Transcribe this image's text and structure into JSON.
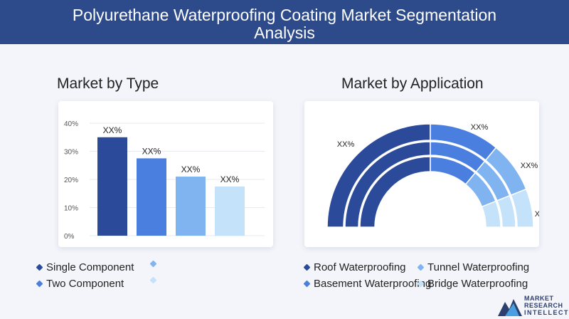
{
  "header": {
    "title": "Polyurethane Waterproofing Coating Market Segmentation Analysis"
  },
  "colors": {
    "header_bg": "#2d4a8a",
    "dark_blue": "#2b4a9a",
    "mid_blue": "#4a7fe0",
    "light_blue": "#7fb4f0",
    "pale_blue": "#c4e2fa"
  },
  "chart_data": [
    {
      "type": "bar",
      "title": "Market by Type",
      "categories": [
        "Single Component",
        "Two Component",
        "",
        ""
      ],
      "values": [
        35,
        27.5,
        21,
        17.5
      ],
      "data_labels": [
        "XX%",
        "XX%",
        "XX%",
        "XX%"
      ],
      "colors": [
        "#2b4a9a",
        "#4a7fe0",
        "#7fb4f0",
        "#c4e2fa"
      ],
      "yticks": [
        "0%",
        "10%",
        "20%",
        "30%",
        "40%"
      ],
      "ylim": [
        0,
        40
      ],
      "grid": true,
      "legend": [
        "Single Component",
        "",
        "Two Component",
        ""
      ]
    },
    {
      "type": "pie",
      "title": "Market by Application",
      "categories": [
        "Roof Waterproofing",
        "Tunnel Waterproofing",
        "Basement Waterproofing",
        "Bridge Waterproofing"
      ],
      "values": [
        50,
        22,
        16,
        12
      ],
      "data_labels": [
        "XX%",
        "XX%",
        "XX%",
        "XX%"
      ],
      "colors": [
        "#2b4a9a",
        "#4a7fe0",
        "#7fb4f0",
        "#c4e2fa"
      ],
      "legend": [
        "Roof Waterproofing",
        "Tunnel Waterproofing",
        "Basement Waterproofing",
        "Bridge Waterproofing"
      ],
      "legend_colors": [
        "#2b4a9a",
        "#7fb4f0",
        "#4a7fe0",
        "#c4e2fa"
      ]
    }
  ],
  "brand": {
    "line1": "MARKET",
    "line2": "RESEARCH",
    "line3": "INTELLECT"
  }
}
